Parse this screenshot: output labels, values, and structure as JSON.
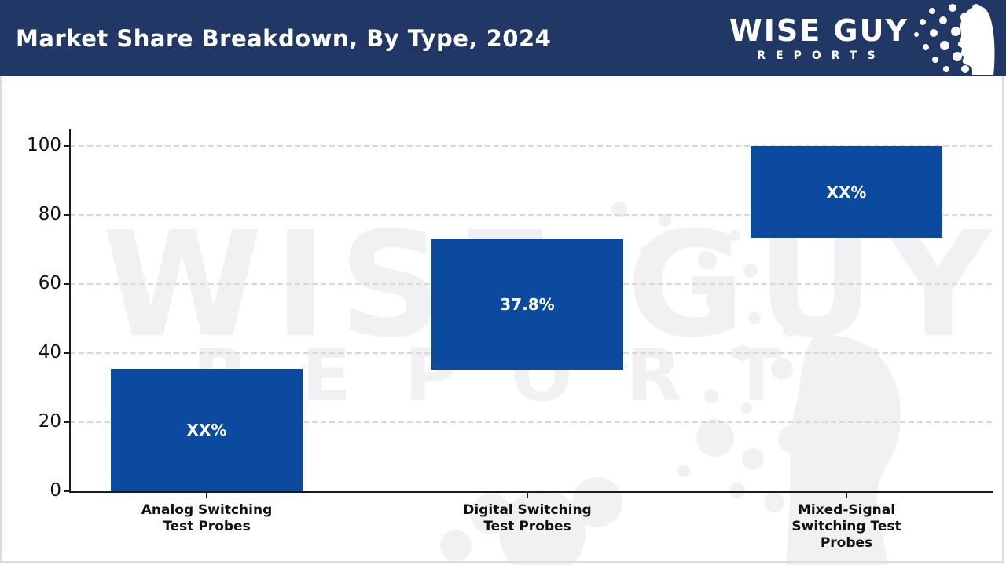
{
  "header": {
    "title": "Market Share Breakdown, By Type, 2024",
    "background_color": "#213766",
    "logo": {
      "name": "Wise Guy Reports",
      "line1": "WISE GUY",
      "line2": "REPORTS"
    }
  },
  "watermark": {
    "line1": "WISE GUY",
    "line2": "REPORTS"
  },
  "chart_data": {
    "type": "bar",
    "variant": "waterfall-segment-breakdown",
    "title": "Market Share Breakdown, By Type, 2024",
    "categories": [
      [
        "Analog Switching",
        "Test Probes"
      ],
      [
        "Digital Switching",
        "Test Probes"
      ],
      [
        "Mixed-Signal",
        "Switching Test",
        "Probes"
      ]
    ],
    "segments": [
      {
        "category": "Analog Switching Test Probes",
        "start": 0,
        "end": 35.4,
        "label": "XX%"
      },
      {
        "category": "Digital Switching Test Probes",
        "start": 35.3,
        "end": 73.1,
        "label": "37.8%"
      },
      {
        "category": "Mixed-Signal Switching Test Probes",
        "start": 73.3,
        "end": 99.9,
        "label": "XX%"
      }
    ],
    "bar_color": "#0b4a9e",
    "bar_label_color": "#ffffff",
    "xlabel": "",
    "ylabel": "",
    "ylim": [
      0,
      100
    ],
    "yticks": [
      0,
      20,
      40,
      60,
      80,
      100
    ],
    "grid": {
      "horizontal": true,
      "style": "dashed",
      "color": "#d9d9d9"
    },
    "legend": "none"
  }
}
